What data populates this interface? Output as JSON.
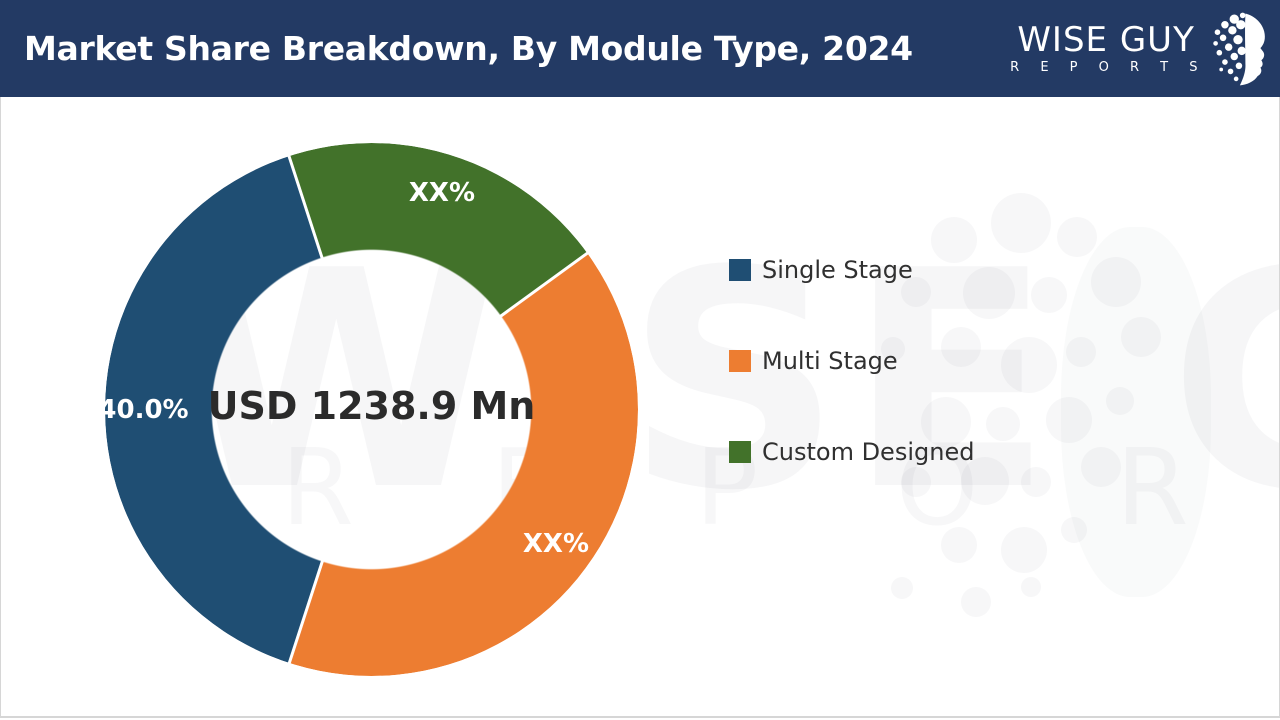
{
  "header": {
    "title": "Market Share Breakdown, By Module Type, 2024",
    "logo": {
      "name": "WISE GUY",
      "sub": "R E P O R T S"
    }
  },
  "watermark": {
    "line1": "WISE GUY",
    "line2": "R E P O R T S"
  },
  "chart_data": {
    "type": "pie",
    "subtype": "donut",
    "title": "Market Share Breakdown, By Module Type, 2024",
    "center_label": "USD 1238.9 Mn",
    "unit": "percent",
    "start_angle_deg": 108,
    "direction": "counterclockwise",
    "donut_hole_ratio": 0.6,
    "legend_position": "right",
    "series": [
      {
        "name": "Single Stage",
        "value": 40.0,
        "label": "40.0%",
        "color": "#1F4E73"
      },
      {
        "name": "Multi Stage",
        "value": 40.0,
        "label": "XX%",
        "color": "#ED7D31"
      },
      {
        "name": "Custom Designed",
        "value": 20.0,
        "label": "XX%",
        "color": "#42722A"
      }
    ]
  },
  "colors": {
    "header_bg": "#233A64",
    "title_text": "#FFFFFF",
    "center_text": "#2B2B2B",
    "legend_text": "#303030",
    "separator": "#FFFFFF",
    "panel_border": "#D6D6D6",
    "page_bg": "#FFFFFF"
  }
}
